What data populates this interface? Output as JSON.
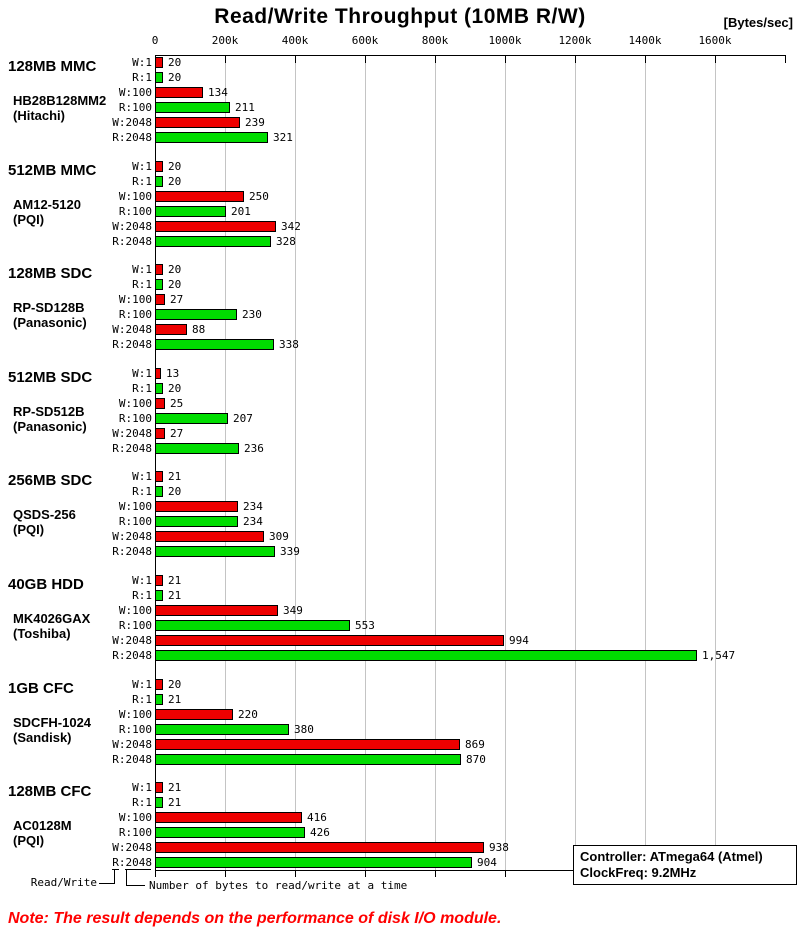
{
  "title": "Read/Write Throughput (10MB R/W)",
  "axis_unit": "[Bytes/sec]",
  "note": "Note: The result depends on the performance of disk I/O module.",
  "info_box": {
    "line1": "Controller: ATmega64 (Atmel)",
    "line2": "ClockFreq: 9.2MHz"
  },
  "callouts": {
    "read_write": "Read/Write",
    "bytes_at_a_time": "Number of bytes to read/write at a time"
  },
  "colors": {
    "write": "#ee0000",
    "read": "#00dd00",
    "grid": "#c4c4c4",
    "note": "#ff0000"
  },
  "chart_data": {
    "type": "bar",
    "orientation": "horizontal",
    "title": "Read/Write Throughput (10MB R/W)",
    "xlabel": "[Bytes/sec]",
    "x_tick_labels": [
      "0",
      "200k",
      "400k",
      "600k",
      "800k",
      "1000k",
      "1200k",
      "1400k",
      "1600k"
    ],
    "xlim_kbytes": [
      0,
      1800
    ],
    "grid": true,
    "bar_labels": [
      "W:1",
      "R:1",
      "W:100",
      "R:100",
      "W:2048",
      "R:2048"
    ],
    "series_colors": {
      "write": "#ee0000",
      "read": "#00dd00"
    },
    "groups": [
      {
        "name": "128MB MMC",
        "model": "HB28B128MM2",
        "maker": "(Hitachi)",
        "values": [
          20,
          20,
          134,
          211,
          239,
          321
        ]
      },
      {
        "name": "512MB MMC",
        "model": "AM12-5120",
        "maker": "(PQI)",
        "values": [
          20,
          20,
          250,
          201,
          342,
          328
        ]
      },
      {
        "name": "128MB SDC",
        "model": "RP-SD128B",
        "maker": "(Panasonic)",
        "values": [
          20,
          20,
          27,
          230,
          88,
          338
        ]
      },
      {
        "name": "512MB SDC",
        "model": "RP-SD512B",
        "maker": "(Panasonic)",
        "values": [
          13,
          20,
          25,
          207,
          27,
          236
        ]
      },
      {
        "name": "256MB SDC",
        "model": "QSDS-256",
        "maker": "(PQI)",
        "values": [
          21,
          20,
          234,
          234,
          309,
          339
        ]
      },
      {
        "name": "40GB HDD",
        "model": "MK4026GAX",
        "maker": "(Toshiba)",
        "values": [
          21,
          21,
          349,
          553,
          994,
          1547
        ]
      },
      {
        "name": "1GB CFC",
        "model": "SDCFH-1024",
        "maker": "(Sandisk)",
        "values": [
          20,
          21,
          220,
          380,
          869,
          870
        ]
      },
      {
        "name": "128MB CFC",
        "model": "AC0128M",
        "maker": "(PQI)",
        "values": [
          21,
          21,
          416,
          426,
          938,
          904
        ]
      }
    ]
  }
}
